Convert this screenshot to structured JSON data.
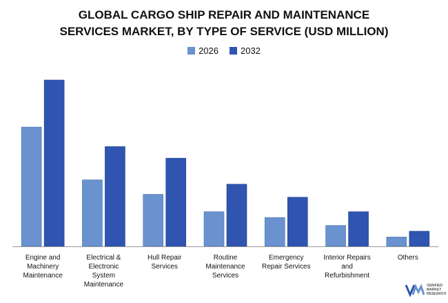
{
  "chart_data": {
    "type": "bar",
    "title_lines": [
      "GLOBAL CARGO SHIP REPAIR AND MAINTENANCE",
      "SERVICES MARKET, BY TYPE OF SERVICE (USD MILLION)"
    ],
    "categories": [
      [
        "Engine and",
        "Machinery",
        "Maintenance"
      ],
      [
        "Electrical &",
        "Electronic",
        "System",
        "Maintenance"
      ],
      [
        "Hull Repair",
        "Services"
      ],
      [
        "Routine",
        "Maintenance",
        "Services"
      ],
      [
        "Emergency",
        "Repair Services"
      ],
      [
        "Interior Repairs",
        "and",
        "Refurbishment"
      ],
      [
        "Others"
      ]
    ],
    "series": [
      {
        "name": "2026",
        "color": "#6A92CF",
        "values": [
          165,
          92,
          72,
          48,
          40,
          29,
          13
        ]
      },
      {
        "name": "2032",
        "color": "#2F55B0",
        "values": [
          230,
          138,
          122,
          86,
          68,
          48,
          21
        ]
      }
    ],
    "ylim": [
      0,
      250
    ],
    "grid": false,
    "legend_position": "top-center"
  },
  "logo": {
    "name": "verified-market-research-logo",
    "lines": [
      "VERIFIED",
      "MARKET",
      "RESEARCH"
    ]
  }
}
